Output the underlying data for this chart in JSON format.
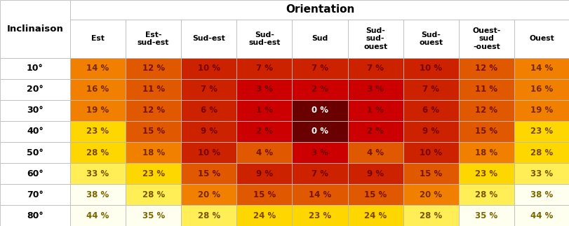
{
  "title": "Orientation",
  "row_header": "Inclinaison",
  "col_headers": [
    "Est",
    "Est-\nsud-est",
    "Sud-est",
    "Sud-\nsud-est",
    "Sud",
    "Sud-\nsud-\nouest",
    "Sud-\nouest",
    "Ouest-\nsud\n-ouest",
    "Ouest"
  ],
  "row_labels": [
    "10°",
    "20°",
    "30°",
    "40°",
    "50°",
    "60°",
    "70°",
    "80°"
  ],
  "values": [
    [
      "14 %",
      "12 %",
      "10 %",
      "7 %",
      "7 %",
      "7 %",
      "10 %",
      "12 %",
      "14 %"
    ],
    [
      "16 %",
      "11 %",
      "7 %",
      "3 %",
      "2 %",
      "3 %",
      "7 %",
      "11 %",
      "16 %"
    ],
    [
      "19 %",
      "12 %",
      "6 %",
      "1 %",
      "0 %",
      "1 %",
      "6 %",
      "12 %",
      "19 %"
    ],
    [
      "23 %",
      "15 %",
      "9 %",
      "2 %",
      "0 %",
      "2 %",
      "9 %",
      "15 %",
      "23 %"
    ],
    [
      "28 %",
      "18 %",
      "10 %",
      "4 %",
      "3 %",
      "4 %",
      "10 %",
      "18 %",
      "28 %"
    ],
    [
      "33 %",
      "23 %",
      "15 %",
      "9 %",
      "7 %",
      "9 %",
      "15 %",
      "23 %",
      "33 %"
    ],
    [
      "38 %",
      "28 %",
      "20 %",
      "15 %",
      "14 %",
      "15 %",
      "20 %",
      "28 %",
      "38 %"
    ],
    [
      "44 %",
      "35 %",
      "28 %",
      "24 %",
      "23 %",
      "24 %",
      "28 %",
      "35 %",
      "44 %"
    ]
  ],
  "cell_colors": [
    [
      "#F28000",
      "#E05800",
      "#CC2200",
      "#CC2200",
      "#CC2200",
      "#CC2200",
      "#CC2200",
      "#E05800",
      "#F28000"
    ],
    [
      "#F28000",
      "#E05800",
      "#CC2200",
      "#CC0000",
      "#CC0000",
      "#CC0000",
      "#CC2200",
      "#E05800",
      "#F28000"
    ],
    [
      "#F28000",
      "#E05800",
      "#CC2200",
      "#CC0000",
      "#6B0000",
      "#CC0000",
      "#CC2200",
      "#E05800",
      "#F28000"
    ],
    [
      "#FFD700",
      "#E05800",
      "#CC2200",
      "#CC0000",
      "#6B0000",
      "#CC0000",
      "#CC2200",
      "#E05800",
      "#FFD700"
    ],
    [
      "#FFD700",
      "#F28000",
      "#CC2200",
      "#E05800",
      "#CC0000",
      "#E05800",
      "#CC2200",
      "#F28000",
      "#FFD700"
    ],
    [
      "#FFEE55",
      "#FFD700",
      "#E05800",
      "#CC2200",
      "#CC2200",
      "#CC2200",
      "#E05800",
      "#FFD700",
      "#FFEE55"
    ],
    [
      "#FFFFF0",
      "#FFEE55",
      "#F28000",
      "#E05800",
      "#E05800",
      "#E05800",
      "#F28000",
      "#FFEE55",
      "#FFFFF0"
    ],
    [
      "#FFFFF0",
      "#FFFFF0",
      "#FFEE55",
      "#FFD700",
      "#FFD700",
      "#FFD700",
      "#FFEE55",
      "#FFFFF0",
      "#FFFFF0"
    ]
  ],
  "text_colors": [
    [
      "#7A2800",
      "#7A1200",
      "#7A0000",
      "#7A0000",
      "#7A0000",
      "#7A0000",
      "#7A0000",
      "#7A1200",
      "#7A2800"
    ],
    [
      "#7A2800",
      "#7A1200",
      "#7A0000",
      "#7A0000",
      "#7A0000",
      "#7A0000",
      "#7A0000",
      "#7A1200",
      "#7A2800"
    ],
    [
      "#7A2800",
      "#7A1200",
      "#7A0000",
      "#7A0000",
      "#ffffff",
      "#7A0000",
      "#7A0000",
      "#7A1200",
      "#7A2800"
    ],
    [
      "#7A4800",
      "#7A1200",
      "#7A0000",
      "#7A0000",
      "#ffffff",
      "#7A0000",
      "#7A0000",
      "#7A1200",
      "#7A4800"
    ],
    [
      "#7A4800",
      "#7A2800",
      "#7A0000",
      "#7A1200",
      "#7A0000",
      "#7A1200",
      "#7A0000",
      "#7A2800",
      "#7A4800"
    ],
    [
      "#7A5500",
      "#7A4800",
      "#7A1200",
      "#7A0000",
      "#7A0000",
      "#7A0000",
      "#7A1200",
      "#7A4800",
      "#7A5500"
    ],
    [
      "#7A6600",
      "#7A5500",
      "#7A2800",
      "#7A1200",
      "#7A1200",
      "#7A1200",
      "#7A2800",
      "#7A5500",
      "#7A6600"
    ],
    [
      "#7A6600",
      "#7A6600",
      "#7A5500",
      "#7A4800",
      "#7A4800",
      "#7A4800",
      "#7A5500",
      "#7A6600",
      "#7A6600"
    ]
  ],
  "header_bg": "#ffffff",
  "border_color": "#bbbbbb",
  "header_text_color": "#000000"
}
